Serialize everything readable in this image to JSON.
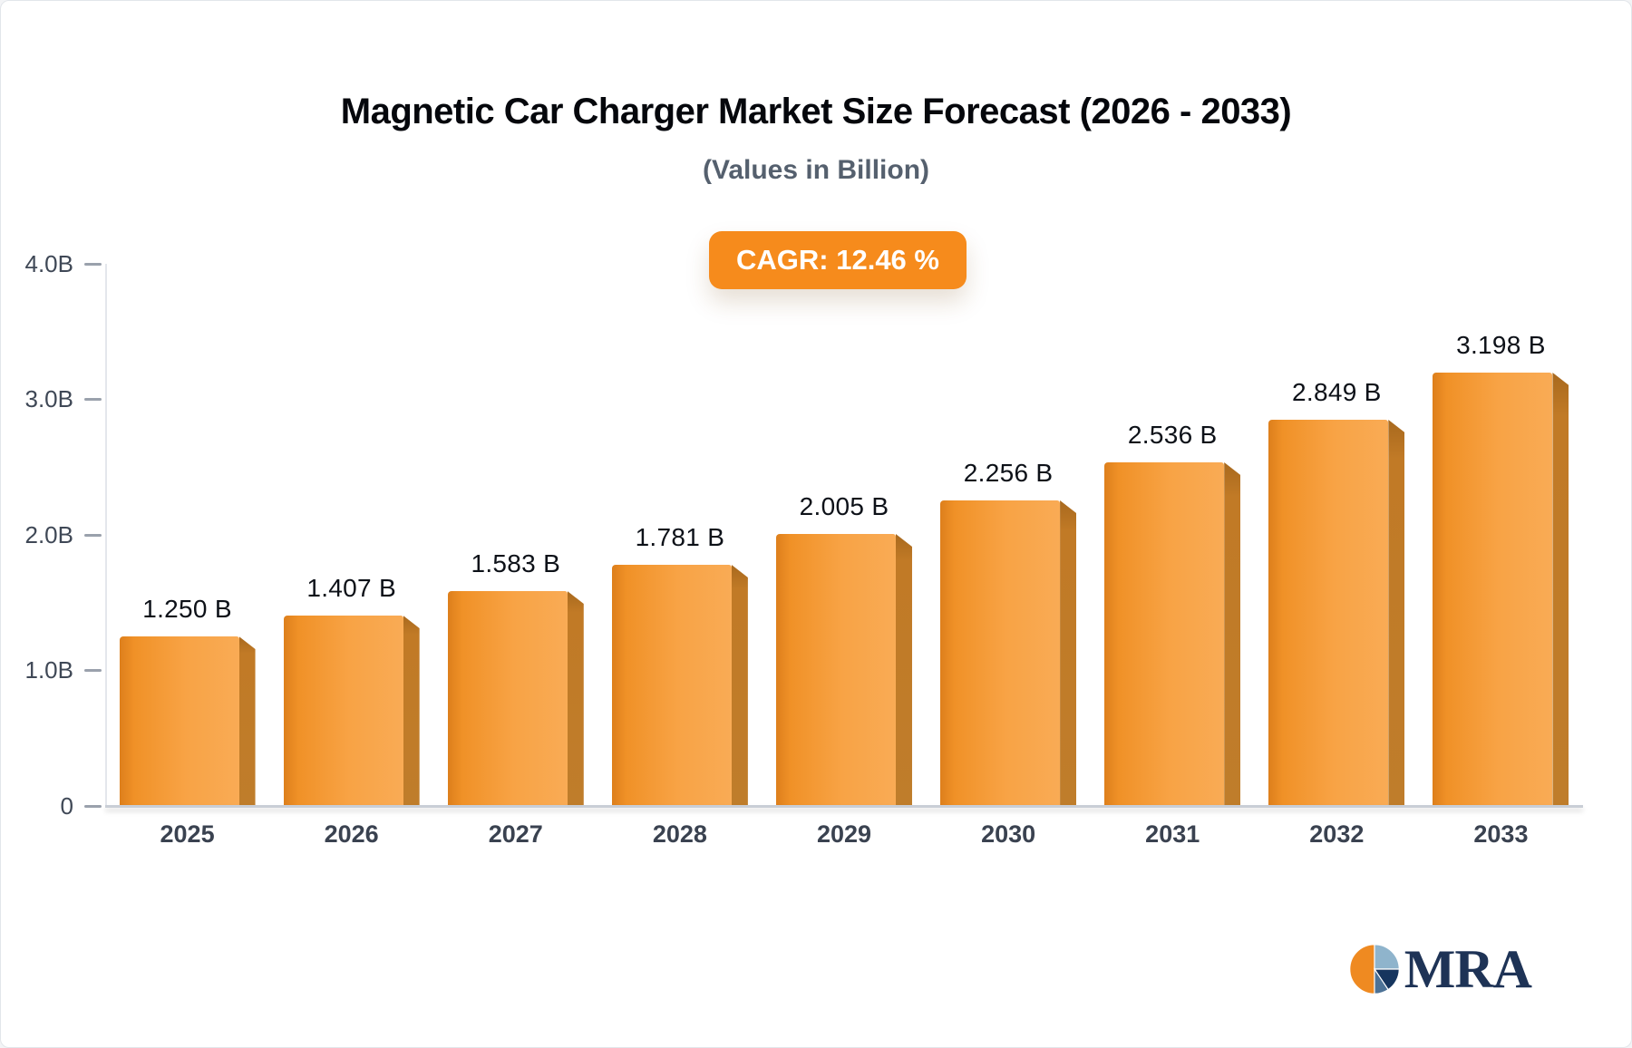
{
  "header": {
    "title": "Magnetic Car Charger Market Size Forecast (2026 - 2033)",
    "subtitle": "(Values in Billion)",
    "cagr_badge": "CAGR: 12.46 %"
  },
  "chart_data": {
    "type": "bar",
    "title": "Magnetic Car Charger Market Size Forecast (2026 - 2033)",
    "subtitle": "(Values in Billion)",
    "cagr_percent": 12.46,
    "categories": [
      "2025",
      "2026",
      "2027",
      "2028",
      "2029",
      "2030",
      "2031",
      "2032",
      "2033"
    ],
    "values": [
      1.25,
      1.407,
      1.583,
      1.781,
      2.005,
      2.256,
      2.536,
      2.849,
      3.198
    ],
    "value_labels": [
      "1.250 B",
      "1.407 B",
      "1.583 B",
      "1.781 B",
      "2.005 B",
      "2.256 B",
      "2.536 B",
      "2.849 B",
      "3.198 B"
    ],
    "xlabel": "",
    "ylabel": "",
    "ylim": [
      0,
      4
    ],
    "yticks": [
      {
        "value": 4,
        "label": "4.0B"
      },
      {
        "value": 3,
        "label": "3.0B"
      },
      {
        "value": 2,
        "label": "2.0B"
      },
      {
        "value": 1,
        "label": "1.0B"
      },
      {
        "value": 0,
        "label": "0"
      }
    ],
    "grid": false,
    "legend": "none",
    "units": "Billion"
  },
  "colors": {
    "accent_orange": "#f68b1c",
    "bar_front_light": "#f9ab55",
    "bar_front_dark": "#dd7f1c",
    "bar_side": "#bf7d2b",
    "axis_text": "#3f4856",
    "title_text": "#05070c",
    "subtitle_text": "#55606e",
    "logo_navy": "#1e3356",
    "logo_blue": "#8fb4cc"
  },
  "logo": {
    "text": "MRA",
    "icon": "pie-chart-icon"
  }
}
